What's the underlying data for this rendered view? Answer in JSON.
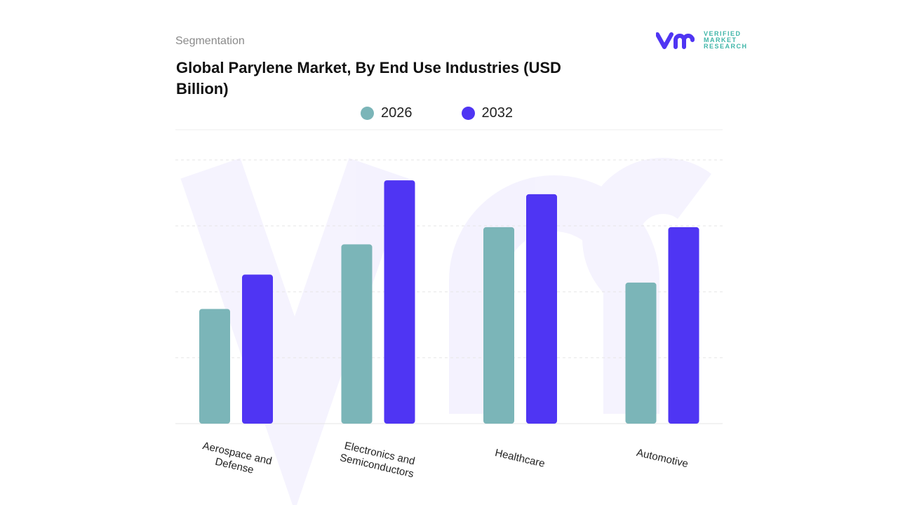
{
  "header": {
    "segment_label": "Segmentation",
    "title": "Global Parylene Market, By End Use Industries (USD Billion)"
  },
  "logo": {
    "text_lines": [
      "VERIFIED",
      "MARKET",
      "RESEARCH"
    ],
    "mark": "vmr"
  },
  "chart_data": {
    "type": "bar",
    "title": "Global Parylene Market, By End Use Industries (USD Billion)",
    "categories": [
      "Aerospace and Defense",
      "Electronics and Semiconductors",
      "Healthcare",
      "Automotive"
    ],
    "series": [
      {
        "name": "2026",
        "values": [
          1.74,
          2.72,
          2.98,
          2.14
        ],
        "color": "#7bb5b8"
      },
      {
        "name": "2032",
        "values": [
          2.26,
          3.69,
          3.48,
          2.98
        ],
        "color": "#4f35f3"
      }
    ],
    "ylim": [
      0,
      4
    ],
    "grid": true,
    "y_tick_labels_shown": false,
    "legend_placement": "top-center"
  }
}
